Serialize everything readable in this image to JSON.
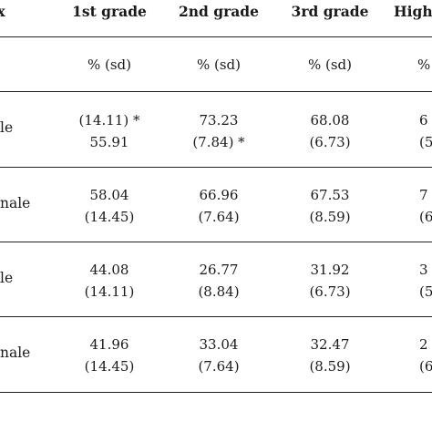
{
  "table": {
    "first_col_header": "x",
    "columns": [
      "1st grade",
      "2nd grade",
      "3rd grade",
      "High"
    ],
    "subheaders": [
      "% (sd)",
      "% (sd)",
      "% (sd)",
      "%"
    ],
    "rows": [
      {
        "label": "le",
        "cells": [
          [
            "(14.11) *",
            "55.91"
          ],
          [
            "73.23",
            "(7.84) *"
          ],
          [
            "68.08",
            "(6.73)"
          ],
          [
            "6",
            "(5"
          ]
        ]
      },
      {
        "label": "nale",
        "cells": [
          [
            "58.04",
            "(14.45)"
          ],
          [
            "66.96",
            "(7.64)"
          ],
          [
            "67.53",
            "(8.59)"
          ],
          [
            "7",
            "(6"
          ]
        ]
      },
      {
        "label": "le",
        "cells": [
          [
            "44.08",
            "(14.11)"
          ],
          [
            "26.77",
            "(8.84)"
          ],
          [
            "31.92",
            "(6.73)"
          ],
          [
            "3",
            "(5"
          ]
        ]
      },
      {
        "label": "nale",
        "cells": [
          [
            "41.96",
            "(14.45)"
          ],
          [
            "33.04",
            "(7.64)"
          ],
          [
            "32.47",
            "(8.59)"
          ],
          [
            "2",
            "(6"
          ]
        ]
      }
    ]
  }
}
